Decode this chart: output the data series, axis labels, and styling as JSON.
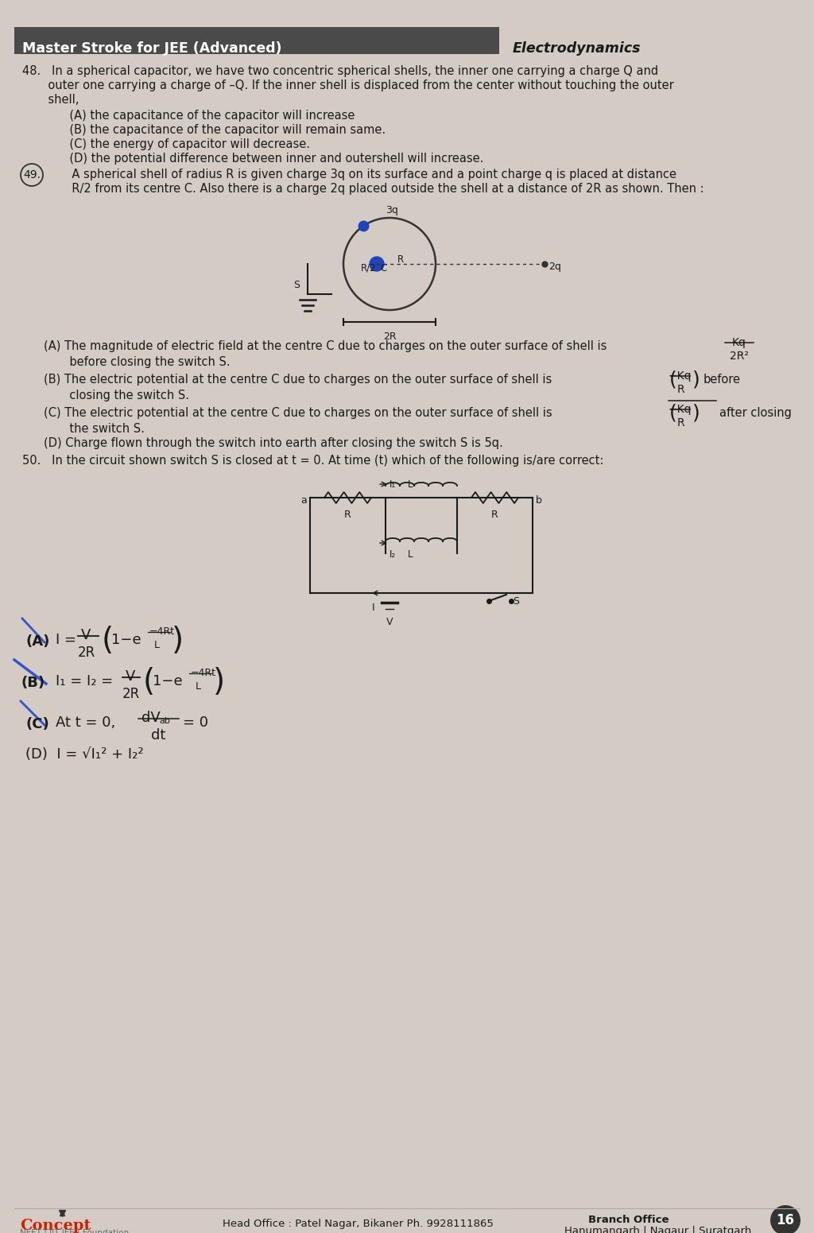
{
  "page_bg": "#d4ccc4",
  "header_bg": "#4a4a4a",
  "header_text": "Master Stroke for JEE (Advanced)",
  "header_right": "Electrodynamics",
  "text_color": "#1a1a1a",
  "q48_line1": "48.   In a spherical capacitor, we have two concentric spherical shells, the inner one carrying a charge Q and",
  "q48_line2": "       outer one carrying a charge of –Q. If the inner shell is displaced from the center without touching the outer",
  "q48_line3": "       shell,",
  "q48_A": "       (A) the capacitance of the capacitor will increase",
  "q48_B": "       (B) the capacitance of the capacitor will remain same.",
  "q48_C": "       (C) the energy of capacitor will decrease.",
  "q48_D": "       (D) the potential difference between inner and outershell will increase.",
  "q49_line1": "       A spherical shell of radius R is given charge 3q on its surface and a point charge q is placed at distance",
  "q49_line2": "       R/2 from its centre C. Also there is a charge 2q placed outside the shell at a distance of 2R as shown. Then :",
  "q49_A_line": "   (A) The magnitude of electric field at the centre C due to charges on the outer surface of shell is",
  "q49_A2": "       before closing the switch S.",
  "q49_B_line": "   (B) The electric potential at the centre C due to charges on the outer surface of shell is",
  "q49_B2": "before",
  "q49_B3": "       closing the switch S.",
  "q49_C_line": "   (C) The electric potential at the centre C due to charges on the outer surface of shell is",
  "q49_C2": "after closing",
  "q49_C3": "       the switch S.",
  "q49_D": "   (D) Charge flown through the switch into earth after closing the switch S is 5q.",
  "q50_line": "50.   In the circuit shown switch S is closed at t = 0. At time (t) which of the following is/are correct:",
  "footer_head": "Head Office : Patel Nagar, Bikaner Ph. 9928111865",
  "footer_branch1": "Branch Office",
  "footer_branch2": "Hanumangarh | Nagaur | Suratgarh",
  "footer_page": "16"
}
